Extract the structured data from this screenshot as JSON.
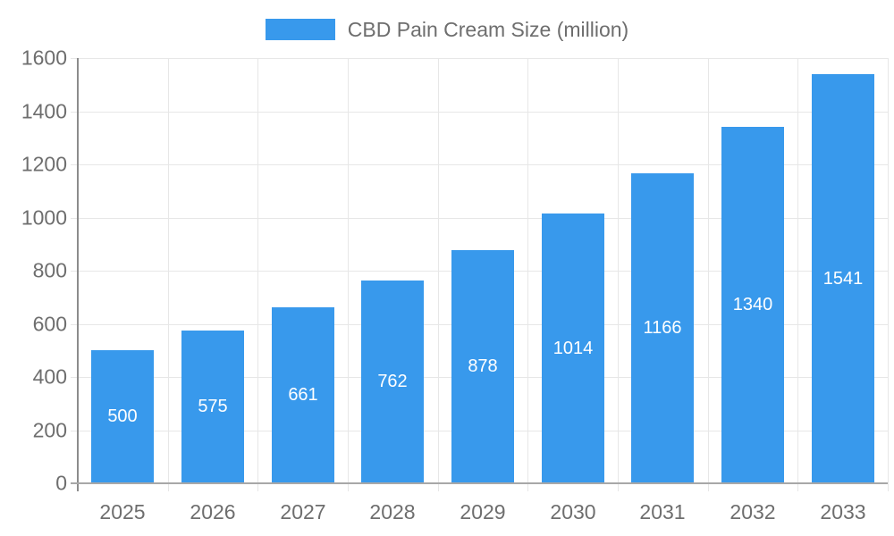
{
  "chart_data": {
    "type": "bar",
    "title": "",
    "legend_label": "CBD Pain Cream Size (million)",
    "legend_position": "top",
    "categories": [
      "2025",
      "2026",
      "2027",
      "2028",
      "2029",
      "2030",
      "2031",
      "2032",
      "2033"
    ],
    "values": [
      500,
      575,
      661,
      762,
      878,
      1014,
      1166,
      1340,
      1541
    ],
    "xlabel": "",
    "ylabel": "",
    "ylim": [
      0,
      1600
    ],
    "y_ticks": [
      0,
      200,
      400,
      600,
      800,
      1000,
      1200,
      1400,
      1600
    ],
    "grid": true,
    "bar_labels_shown": true,
    "colors": {
      "bar": "#3899EC",
      "bar_value_text": "#FFFFFF",
      "axis_text": "#6E6E6E",
      "grid_line": "#E7E7E7",
      "y_axis_line": "#8C8C8C",
      "x_axis_line": "#A8A8A8"
    }
  }
}
